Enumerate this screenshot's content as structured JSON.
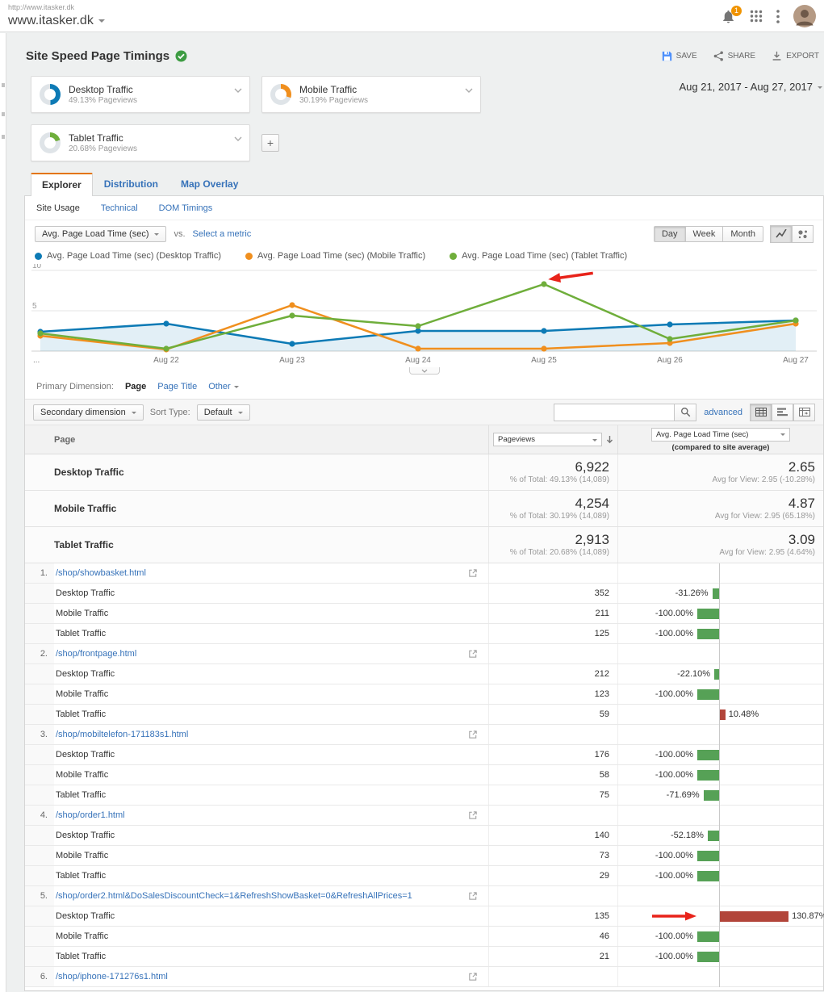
{
  "topbar": {
    "url": "http://www.itasker.dk",
    "account": "www.itasker.dk",
    "notification_count": "1"
  },
  "header": {
    "title": "Site Speed Page Timings",
    "save": "SAVE",
    "share": "SHARE",
    "export": "EXPORT"
  },
  "date_range": "Aug 21, 2017 - Aug 27, 2017",
  "segments": [
    {
      "name": "Desktop Traffic",
      "detail": "49.13% Pageviews",
      "pct": 49.13,
      "color": "#0d7ab5"
    },
    {
      "name": "Mobile Traffic",
      "detail": "30.19% Pageviews",
      "pct": 30.19,
      "color": "#f08f1e"
    },
    {
      "name": "Tablet Traffic",
      "detail": "20.68% Pageviews",
      "pct": 20.68,
      "color": "#6fae3b"
    }
  ],
  "add_segment_label": "+",
  "tabs": {
    "explorer": "Explorer",
    "distribution": "Distribution",
    "map_overlay": "Map Overlay"
  },
  "subtabs": [
    "Site Usage",
    "Technical",
    "DOM Timings"
  ],
  "metric_bar": {
    "metric_button": "Avg. Page Load Time (sec)",
    "vs_label": "vs.",
    "select_metric": "Select a metric",
    "granularity": [
      "Day",
      "Week",
      "Month"
    ],
    "granularity_active": "Day"
  },
  "chart_data": {
    "type": "line",
    "x_labels": [
      "...",
      "Aug 22",
      "Aug 23",
      "Aug 24",
      "Aug 25",
      "Aug 26",
      "Aug 27"
    ],
    "x_dates": [
      "Aug 21",
      "Aug 22",
      "Aug 23",
      "Aug 24",
      "Aug 25",
      "Aug 26",
      "Aug 27"
    ],
    "ylim": [
      0,
      10
    ],
    "yticks": [
      5,
      10
    ],
    "grid": true,
    "legend_position": "top",
    "series": [
      {
        "name": "Avg. Page Load Time (sec) (Desktop Traffic)",
        "color": "#0d7ab5",
        "area": true,
        "values": [
          2.4,
          3.4,
          0.9,
          2.5,
          2.5,
          3.3,
          3.8
        ]
      },
      {
        "name": "Avg. Page Load Time (sec) (Mobile Traffic)",
        "color": "#f08f1e",
        "area": false,
        "values": [
          1.9,
          0.2,
          5.7,
          0.3,
          0.3,
          1.0,
          3.4
        ]
      },
      {
        "name": "Avg. Page Load Time (sec) (Tablet Traffic)",
        "color": "#6fae3b",
        "area": false,
        "values": [
          2.2,
          0.3,
          4.4,
          3.1,
          8.3,
          1.5,
          3.8
        ]
      }
    ],
    "annotation": {
      "arrow_at": "Aug 25"
    }
  },
  "primary_dimension": {
    "label": "Primary Dimension:",
    "active": "Page",
    "links": [
      "Page Title",
      "Other"
    ]
  },
  "toolbar": {
    "secondary_dimension": "Secondary dimension",
    "sort_type_label": "Sort Type:",
    "sort_type_value": "Default",
    "search_value": "",
    "advanced_label": "advanced"
  },
  "table": {
    "headers": {
      "page": "Page",
      "pageviews": "Pageviews",
      "metric": "Avg. Page Load Time (sec)",
      "metric_sub": "(compared to site average)"
    },
    "summary_rows": [
      {
        "label": "Desktop Traffic",
        "pageviews": "6,922",
        "pageviews_sub": "% of Total: 49.13% (14,089)",
        "metric": "2.65",
        "metric_sub": "Avg for View: 2.95 (-10.28%)"
      },
      {
        "label": "Mobile Traffic",
        "pageviews": "4,254",
        "pageviews_sub": "% of Total: 30.19% (14,089)",
        "metric": "4.87",
        "metric_sub": "Avg for View: 2.95 (65.18%)"
      },
      {
        "label": "Tablet Traffic",
        "pageviews": "2,913",
        "pageviews_sub": "% of Total: 20.68% (14,089)",
        "metric": "3.09",
        "metric_sub": "Avg for View: 2.95 (4.64%)"
      }
    ],
    "rows": [
      {
        "num": "1.",
        "page": "/shop/showbasket.html",
        "segments": [
          {
            "label": "Desktop Traffic",
            "pageviews": "352",
            "delta": "-31.26%"
          },
          {
            "label": "Mobile Traffic",
            "pageviews": "211",
            "delta": "-100.00%"
          },
          {
            "label": "Tablet Traffic",
            "pageviews": "125",
            "delta": "-100.00%"
          }
        ]
      },
      {
        "num": "2.",
        "page": "/shop/frontpage.html",
        "segments": [
          {
            "label": "Desktop Traffic",
            "pageviews": "212",
            "delta": "-22.10%"
          },
          {
            "label": "Mobile Traffic",
            "pageviews": "123",
            "delta": "-100.00%"
          },
          {
            "label": "Tablet Traffic",
            "pageviews": "59",
            "delta": "10.48%"
          }
        ]
      },
      {
        "num": "3.",
        "page": "/shop/mobiltelefon-171183s1.html",
        "segments": [
          {
            "label": "Desktop Traffic",
            "pageviews": "176",
            "delta": "-100.00%"
          },
          {
            "label": "Mobile Traffic",
            "pageviews": "58",
            "delta": "-100.00%"
          },
          {
            "label": "Tablet Traffic",
            "pageviews": "75",
            "delta": "-71.69%"
          }
        ]
      },
      {
        "num": "4.",
        "page": "/shop/order1.html",
        "segments": [
          {
            "label": "Desktop Traffic",
            "pageviews": "140",
            "delta": "-52.18%"
          },
          {
            "label": "Mobile Traffic",
            "pageviews": "73",
            "delta": "-100.00%"
          },
          {
            "label": "Tablet Traffic",
            "pageviews": "29",
            "delta": "-100.00%"
          }
        ]
      },
      {
        "num": "5.",
        "page": "/shop/order2.html&DoSalesDiscountCheck=1&RefreshShowBasket=0&RefreshAllPrices=1",
        "segments": [
          {
            "label": "Desktop Traffic",
            "pageviews": "135",
            "delta": "130.87%",
            "arrow": true
          },
          {
            "label": "Mobile Traffic",
            "pageviews": "46",
            "delta": "-100.00%"
          },
          {
            "label": "Tablet Traffic",
            "pageviews": "21",
            "delta": "-100.00%"
          }
        ]
      },
      {
        "num": "6.",
        "page": "/shop/iphone-171276s1.html",
        "segments": []
      }
    ]
  },
  "colors": {
    "bar_negative": "#56a156",
    "bar_positive": "#b2453a",
    "arrow": "#e8231a",
    "accent_tab": "#e37400"
  }
}
